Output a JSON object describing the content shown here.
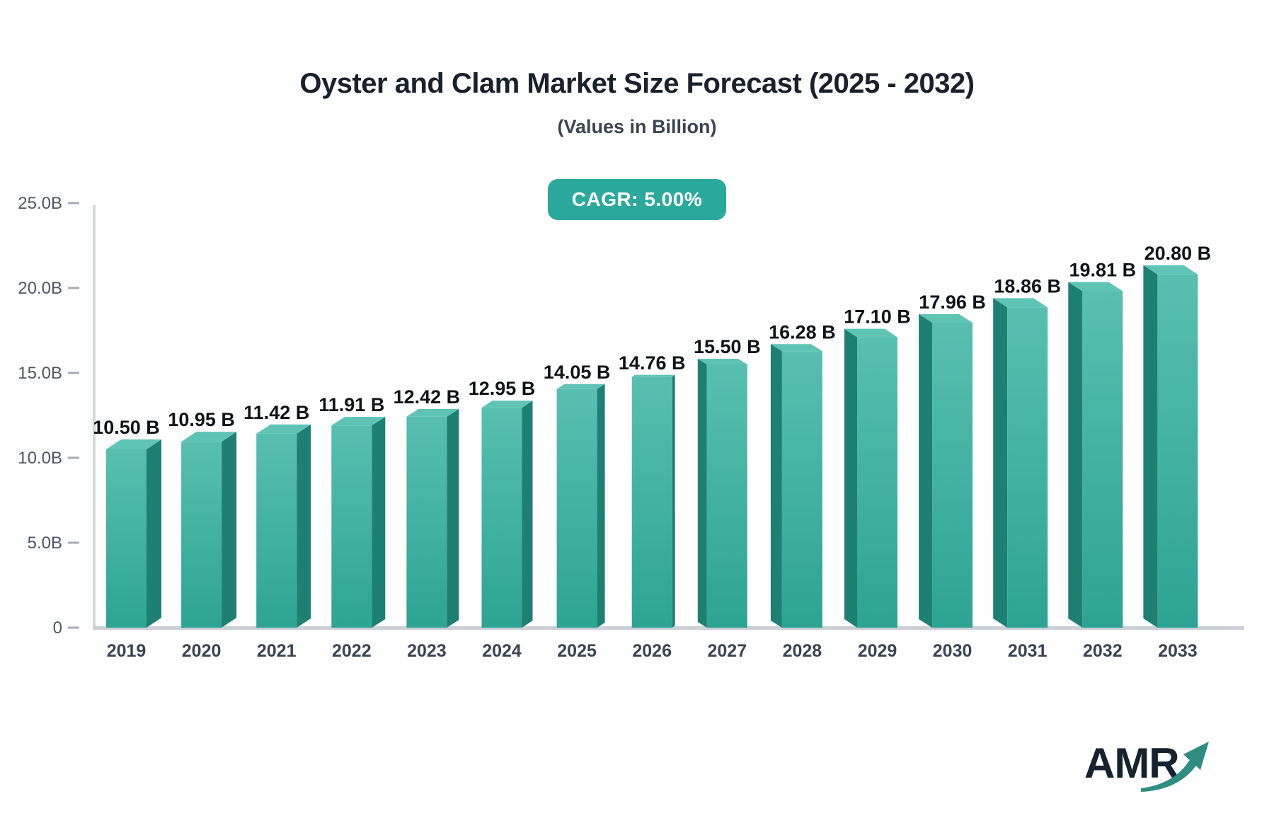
{
  "header": {
    "title": "Oyster and Clam Market Size Forecast (2025 - 2032)",
    "subtitle": "(Values in Billion)",
    "cagr_label": "CAGR: 5.00%"
  },
  "chart_data": {
    "type": "bar",
    "title": "Oyster and Clam Market Size Forecast (2025 - 2032)",
    "subtitle": "(Values in Billion)",
    "cagr_percent": 5.0,
    "categories": [
      "2019",
      "2020",
      "2021",
      "2022",
      "2023",
      "2024",
      "2025",
      "2026",
      "2027",
      "2028",
      "2029",
      "2030",
      "2031",
      "2032",
      "2033"
    ],
    "values": [
      10.5,
      10.95,
      11.42,
      11.91,
      12.42,
      12.95,
      14.05,
      14.76,
      15.5,
      16.28,
      17.1,
      17.96,
      18.86,
      19.81,
      20.8
    ],
    "value_labels": [
      "10.50 B",
      "10.95 B",
      "11.42 B",
      "11.91 B",
      "12.42 B",
      "12.95 B",
      "14.05 B",
      "14.76 B",
      "15.50 B",
      "16.28 B",
      "17.10 B",
      "17.96 B",
      "18.86 B",
      "19.81 B",
      "20.80 B"
    ],
    "xlabel": "",
    "ylabel": "",
    "ylim": [
      0,
      25
    ],
    "yticks": [
      {
        "value": 0,
        "label": "0"
      },
      {
        "value": 5,
        "label": "5.0B"
      },
      {
        "value": 10,
        "label": "10.0B"
      },
      {
        "value": 15,
        "label": "15.0B"
      },
      {
        "value": 20,
        "label": "20.0B"
      },
      {
        "value": 25,
        "label": "25.0B"
      }
    ],
    "legend": "none",
    "grid": "off",
    "colors": {
      "bar_front_top": "#58bfb0",
      "bar_front_bottom": "#2da493",
      "bar_top_face": "#5fc4b5",
      "bar_side_face": "#1e7f73",
      "axis_line": "#d2d7dc",
      "baseline": "#cbd0d6",
      "tick_dash": "#a6adb8",
      "y_label": "#4e5765",
      "x_label": "#3a4454",
      "data_label": "#101418",
      "badge_bg": "#2ba99c",
      "badge_text": "#ffffff"
    }
  },
  "logo": {
    "text": "AMR",
    "arrow_color": "#2e8c81"
  }
}
